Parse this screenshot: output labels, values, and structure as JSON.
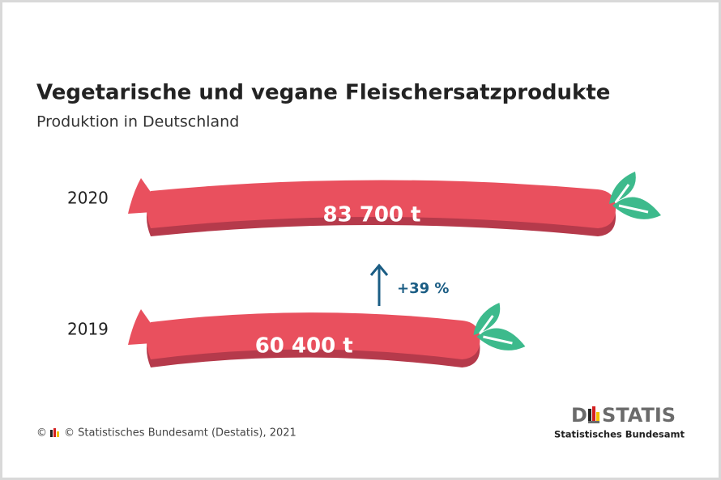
{
  "chart_data": {
    "type": "bar",
    "orientation": "horizontal",
    "title": "Vegetarische und vegane Fleischersatzprodukte",
    "subtitle": "Produktion in Deutschland",
    "categories": [
      "2020",
      "2019"
    ],
    "values": [
      83700,
      60400
    ],
    "value_labels": [
      "83 700 t",
      "60 400 t"
    ],
    "color": "#e9505e",
    "annotation": "+39 %",
    "source": "© Statistisches Bundesamt (Destatis), 2021",
    "logo": {
      "left": "D",
      "right": "STATIS",
      "subtitle": "Statistisches Bundesamt"
    }
  }
}
